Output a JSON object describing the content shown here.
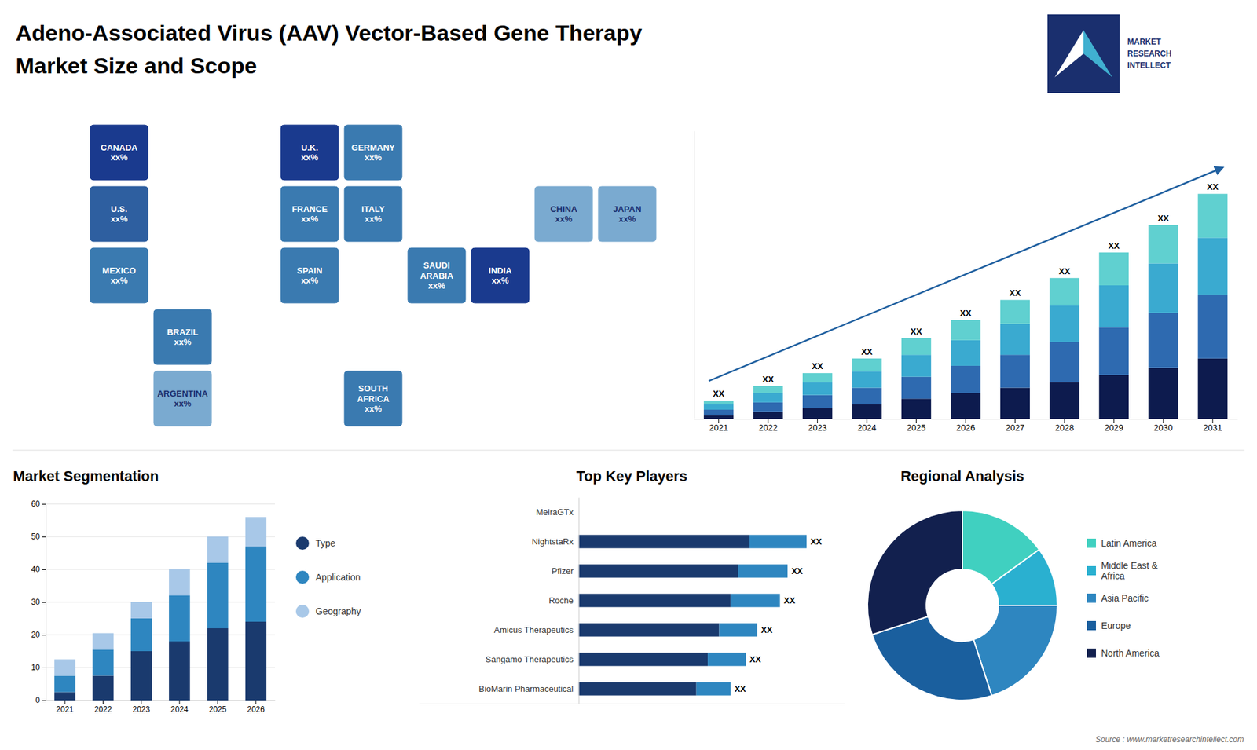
{
  "title": "Adeno-Associated Virus (AAV) Vector-Based Gene Therapy",
  "subtitle": "Market Size and Scope",
  "annotations": [
    "MARKET\nRESEARCH\nINTELLECT",
    "Source : www.marketresearchintellect.com"
  ],
  "chart_data": [
    {
      "type": "map",
      "annotations": [
        "U.S.\nxx%",
        "CANADA\nxx%",
        "MEXICO\nxx%",
        "BRAZIL\nxx%",
        "ARGENTINA\nxx%",
        "U.K.\nxx%",
        "FRANCE\nxx%",
        "SPAIN\nxx%",
        "GERMANY\nxx%",
        "ITALY\nxx%",
        "SOUTH\nAFRICA\nxx%",
        "SAUDI\nARABIA\nxx%",
        "CHINA\nxx%",
        "INDIA\nxx%",
        "JAPAN\nxx%"
      ],
      "colors": [
        "#2e5fa0",
        "#1a3a8e",
        "#3a7ab0",
        "#3a7ab0",
        "#7aaad0",
        "#1a3a8e",
        "#3a7ab0",
        "#3a7ab0",
        "#3a7ab0",
        "#3a7ab0",
        "#3a7ab0",
        "#3a7ab0",
        "#7aaad0",
        "#1a3a8e",
        "#7aaad0"
      ]
    },
    {
      "type": "bar",
      "stacked": true,
      "categories": [
        "2021",
        "2022",
        "2023",
        "2024",
        "2025",
        "2026",
        "2027",
        "2028",
        "2029",
        "2030",
        "2031"
      ],
      "series": [
        {
          "color": "#0d1b4e",
          "values": [
            2,
            4,
            6,
            8,
            11,
            14,
            17,
            20,
            24,
            28,
            33
          ]
        },
        {
          "color": "#2e6ab0",
          "values": [
            3,
            5,
            7,
            9,
            12,
            15,
            18,
            22,
            26,
            30,
            35
          ]
        },
        {
          "color": "#3aaad0",
          "values": [
            3,
            5,
            7,
            9,
            12,
            14,
            17,
            20,
            23,
            27,
            31
          ]
        },
        {
          "color": "#60d0d0",
          "values": [
            2,
            4,
            5,
            7,
            9,
            11,
            13,
            15,
            18,
            21,
            24
          ]
        }
      ],
      "ylim": [
        0,
        157.44
      ],
      "tick_labels": "x",
      "grid": false,
      "annotations": [
        "XX",
        "XX",
        "XX",
        "XX",
        "XX",
        "XX",
        "XX",
        "XX",
        "XX",
        "XX",
        "XX"
      ]
    },
    {
      "type": "bar",
      "stacked": true,
      "title": "Market Segmentation",
      "categories": [
        "2021",
        "2022",
        "2023",
        "2024",
        "2025",
        "2026"
      ],
      "series": [
        {
          "name": "Type",
          "color": "#1a3a6e",
          "values": [
            2.5,
            7.5,
            15,
            18,
            22,
            24
          ]
        },
        {
          "name": "Application",
          "color": "#2e86c0",
          "values": [
            5,
            8,
            10,
            14,
            20,
            23
          ]
        },
        {
          "name": "Geography",
          "color": "#a8c8e8",
          "values": [
            5,
            5,
            5,
            8,
            8,
            9
          ]
        }
      ],
      "ylim": [
        0,
        60
      ],
      "yticks": [
        0,
        10,
        20,
        30,
        40,
        50,
        60
      ],
      "grid": true,
      "legend": "right"
    },
    {
      "type": "bar",
      "stacked": true,
      "orientation": "horizontal",
      "title": "Top Key Players",
      "categories": [
        "MeiraGTx",
        "NightstaRx",
        "Pfizer",
        "Roche",
        "Amicus Therapeutics",
        "Sangamo Therapeutics",
        "BioMarin Pharmaceutical"
      ],
      "series": [
        {
          "color": "#1a3a6e",
          "values": [
            0,
            45,
            42,
            40,
            37,
            34,
            31
          ]
        },
        {
          "color": "#2e86c0",
          "values": [
            0,
            15,
            13,
            13,
            10,
            10,
            9
          ]
        }
      ],
      "xlim": [
        -42,
        70
      ],
      "tick_labels": "y",
      "grid": false,
      "annotations": [
        "XX",
        "XX",
        "XX",
        "XX",
        "XX",
        "XX"
      ]
    },
    {
      "type": "pie",
      "title": "Regional Analysis",
      "categories": [
        "Latin America",
        "Middle East &\nAfrica",
        "Asia Pacific",
        "Europe",
        "North America"
      ],
      "values": [
        15,
        10,
        20,
        25,
        30
      ],
      "colors": [
        "#40d0c0",
        "#2ab0d0",
        "#2e86c0",
        "#1a5f9e",
        "#12204e"
      ],
      "legend": "right"
    }
  ]
}
